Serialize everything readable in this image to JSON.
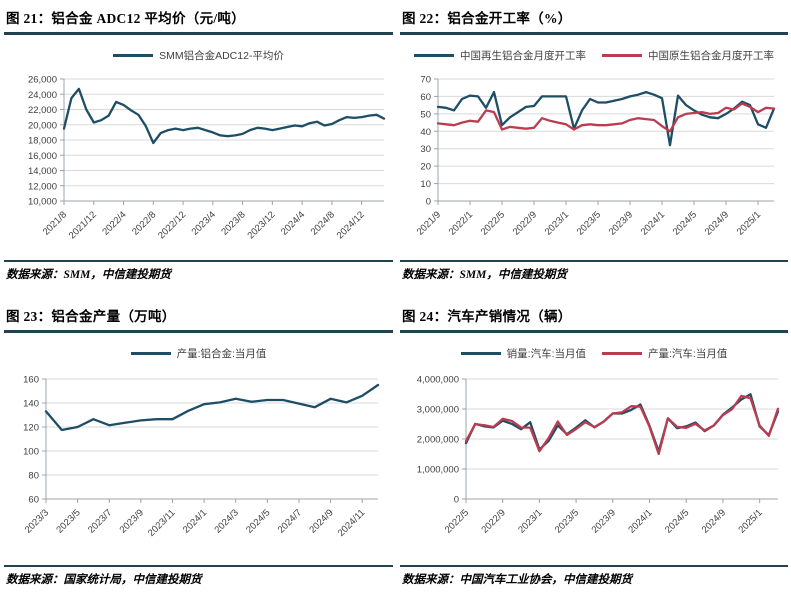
{
  "colors": {
    "rule_dark": "#23424F",
    "series_blue": "#1E4E66",
    "series_red": "#BC3C4F",
    "gridline": "#D9D9D9",
    "axis": "#9AA4AB"
  },
  "panels": [
    {
      "title": "图 21：铝合金 ADC12 平均价（元/吨）",
      "source": "数据来源：SMM，中信建投期货"
    },
    {
      "title": "图 22：铝合金开工率（%）",
      "source": "数据来源：SMM，中信建投期货"
    },
    {
      "title": "图 23：铝合金产量（万吨）",
      "source": "数据来源：国家统计局，中信建投期货"
    },
    {
      "title": "图 24：汽车产销情况（辆）",
      "source": "数据来源：中国汽车工业协会，中信建投期货"
    }
  ],
  "chart_data": [
    {
      "type": "line",
      "title": "铝合金 ADC12 平均价（元/吨）",
      "x_monthly_from": "2021/8",
      "x_tick_labels": [
        "2021/8",
        "2021/12",
        "2022/4",
        "2022/8",
        "2022/12",
        "2023/4",
        "2023/8",
        "2023/12",
        "2024/4",
        "2024/8",
        "2024/12"
      ],
      "x_label_every": 4,
      "ylim": [
        10000,
        26000
      ],
      "ytick_labels": [
        "10,000",
        "12,000",
        "14,000",
        "16,000",
        "18,000",
        "20,000",
        "22,000",
        "24,000",
        "26,000"
      ],
      "grid": true,
      "legend_position": "top",
      "series": [
        {
          "name": "SMM铝合金ADC12-平均价",
          "color": "#1E4E66",
          "values": [
            19500,
            23500,
            24700,
            22000,
            20300,
            20600,
            21200,
            23000,
            22600,
            21900,
            21300,
            19800,
            17600,
            18900,
            19300,
            19500,
            19300,
            19500,
            19600,
            19300,
            19000,
            18600,
            18500,
            18600,
            18800,
            19300,
            19600,
            19500,
            19300,
            19500,
            19700,
            19900,
            19800,
            20200,
            20400,
            19900,
            20100,
            20600,
            21000,
            20900,
            21000,
            21200,
            21300,
            20800
          ]
        }
      ]
    },
    {
      "type": "line",
      "title": "铝合金开工率（%）",
      "x_monthly_from": "2021/9",
      "x_tick_labels": [
        "2021/9",
        "2022/1",
        "2022/5",
        "2022/9",
        "2023/1",
        "2023/5",
        "2023/9",
        "2024/1",
        "2024/5",
        "2024/9",
        "2025/1"
      ],
      "x_label_every": 4,
      "ylim": [
        0,
        70
      ],
      "ytick_labels": [
        "0",
        "10",
        "20",
        "30",
        "40",
        "50",
        "60",
        "70"
      ],
      "grid": true,
      "legend_position": "top",
      "series": [
        {
          "name": "中国再生铝合金月度开工率",
          "color": "#1E4E66",
          "values": [
            54,
            53.5,
            52,
            58.5,
            60.5,
            60,
            53.5,
            62.5,
            43.5,
            48,
            51,
            54,
            54.5,
            60,
            60,
            60,
            60,
            41.5,
            52,
            58.5,
            56.5,
            56.5,
            57.5,
            58.5,
            60,
            61,
            62.5,
            61,
            59,
            32,
            60.5,
            55,
            52,
            49.5,
            48,
            47.5,
            50,
            53,
            57,
            55,
            44,
            42,
            53
          ]
        },
        {
          "name": "中国原生铝合金月度开工率",
          "color": "#BC3C4F",
          "values": [
            44.5,
            44,
            43.5,
            45,
            46,
            45.5,
            52,
            51,
            41,
            42.5,
            42,
            41.5,
            42,
            47.5,
            46,
            45,
            44,
            41,
            43.5,
            44,
            43.5,
            43.5,
            44,
            44.5,
            46.5,
            47.5,
            47,
            46.5,
            43,
            40,
            48,
            50,
            50.5,
            51,
            50,
            50.5,
            53.5,
            52.5,
            56,
            54,
            51,
            53.5,
            53
          ]
        }
      ]
    },
    {
      "type": "line",
      "title": "铝合金产量（万吨）",
      "x_monthly_from": "2023/3",
      "x_tick_labels": [
        "2023/3",
        "2023/5",
        "2023/7",
        "2023/9",
        "2023/11",
        "2024/1",
        "2024/3",
        "2024/5",
        "2024/7",
        "2024/9",
        "2024/11"
      ],
      "x_label_every": 2,
      "ylim": [
        60,
        160
      ],
      "ytick_labels": [
        "60",
        "80",
        "100",
        "120",
        "140",
        "160"
      ],
      "grid": true,
      "legend_position": "top",
      "series": [
        {
          "name": "产量:铝合金:当月值",
          "color": "#1E4E66",
          "values": [
            133,
            117.5,
            120,
            126.5,
            121.5,
            123.5,
            125.5,
            126.5,
            126.5,
            133.5,
            139,
            140.5,
            143.5,
            141,
            142.5,
            142.5,
            139.5,
            136.5,
            143.5,
            140.5,
            146,
            155
          ]
        }
      ]
    },
    {
      "type": "line",
      "title": "汽车产销情况（辆）",
      "x_monthly_from": "2022/5",
      "x_tick_labels": [
        "2022/5",
        "2022/9",
        "2023/1",
        "2023/5",
        "2023/9",
        "2024/1",
        "2024/5",
        "2024/9",
        "2025/1"
      ],
      "x_label_every": 4,
      "ylim": [
        0,
        4000000
      ],
      "ytick_labels": [
        "0",
        "1,000,000",
        "2,000,000",
        "3,000,000",
        "4,000,000"
      ],
      "grid": true,
      "legend_position": "top",
      "series": [
        {
          "name": "销量:汽车:当月值",
          "color": "#1E4E66",
          "values": [
            1862000,
            2502000,
            2420000,
            2383000,
            2610000,
            2505000,
            2328000,
            2560000,
            1649000,
            1938000,
            2452000,
            2160000,
            2382000,
            2622000,
            2387000,
            2580000,
            2854000,
            2850000,
            2970000,
            3150000,
            2440000,
            1585000,
            2690000,
            2360000,
            2420000,
            2550000,
            2262000,
            2450000,
            2809000,
            3050000,
            3316000,
            3489000,
            2420000,
            2129000,
            2915000
          ]
        },
        {
          "name": "产量:汽车:当月值",
          "color": "#BC3C4F",
          "values": [
            1926000,
            2495000,
            2455000,
            2399000,
            2675000,
            2599000,
            2383000,
            2381000,
            1594000,
            2032000,
            2584000,
            2134000,
            2333000,
            2561000,
            2401000,
            2575000,
            2850000,
            2891000,
            3093000,
            3078000,
            2411000,
            1503000,
            2687000,
            2405000,
            2372000,
            2507000,
            2286000,
            2449000,
            2796000,
            2996000,
            3437000,
            3361000,
            2450000,
            2103000,
            3006000
          ]
        }
      ]
    }
  ]
}
